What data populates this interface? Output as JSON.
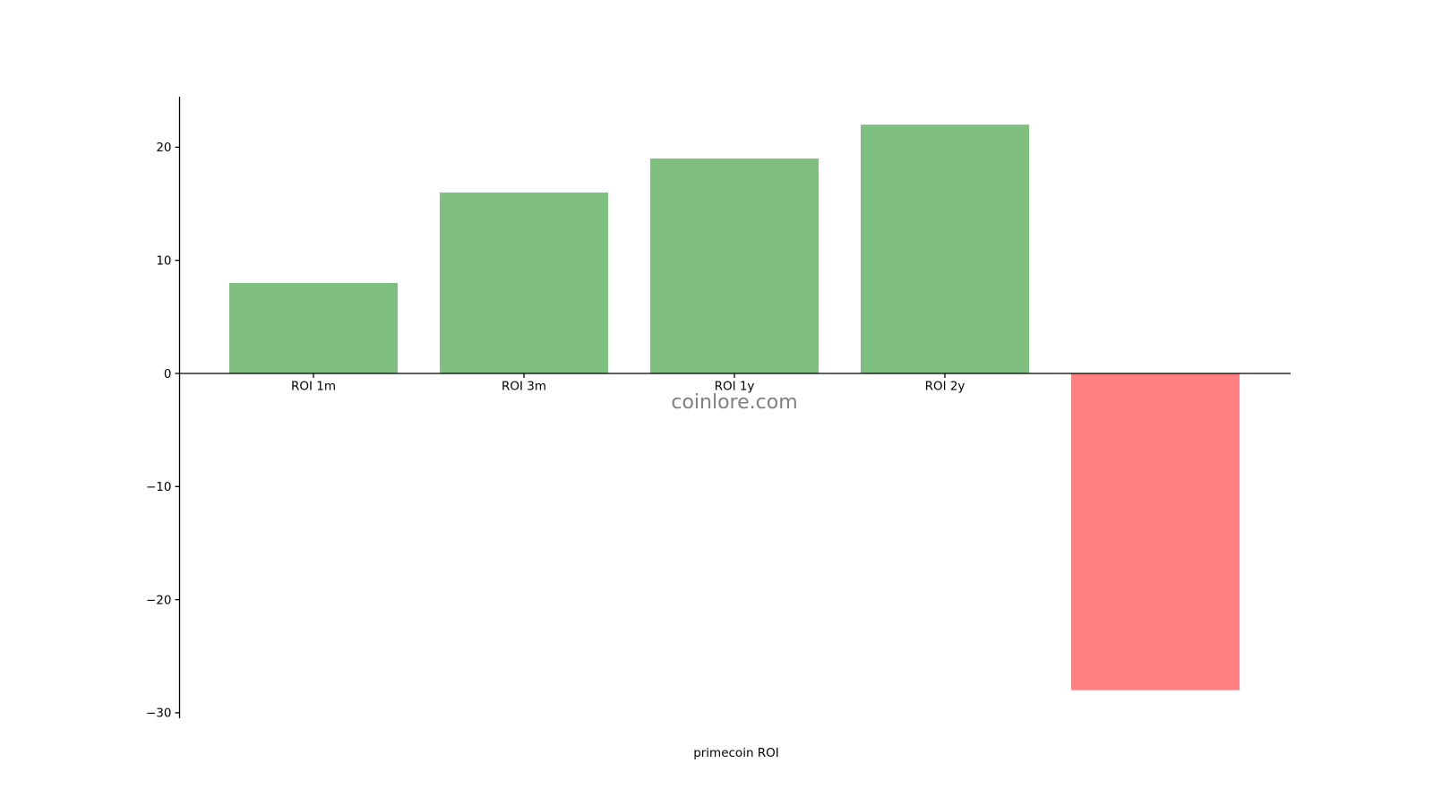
{
  "watermark": {
    "text": "coinlore.com",
    "color": "#808080"
  },
  "colors": {
    "positive_bar": "#7fbf7f",
    "negative_bar": "#ff8080",
    "axis": "#000000",
    "tick_text": "#000000",
    "title_text": "#000000"
  },
  "chart_data": {
    "type": "bar",
    "categories": [
      "ROI 1m",
      "ROI 3m",
      "ROI 1y",
      "ROI 2y",
      ""
    ],
    "values": [
      8,
      16,
      19,
      22,
      -28
    ],
    "bar_colors": [
      "positive",
      "positive",
      "positive",
      "positive",
      "negative"
    ],
    "title": "primecoin ROI",
    "xlabel": "",
    "ylabel": "",
    "yticks": [
      20,
      10,
      0,
      -10,
      -20,
      -30
    ],
    "ylim": [
      -30.5,
      24.5
    ],
    "xlim": [
      -0.64,
      4.64
    ],
    "grid": false,
    "legend": "none",
    "watermark": "coinlore.com"
  }
}
